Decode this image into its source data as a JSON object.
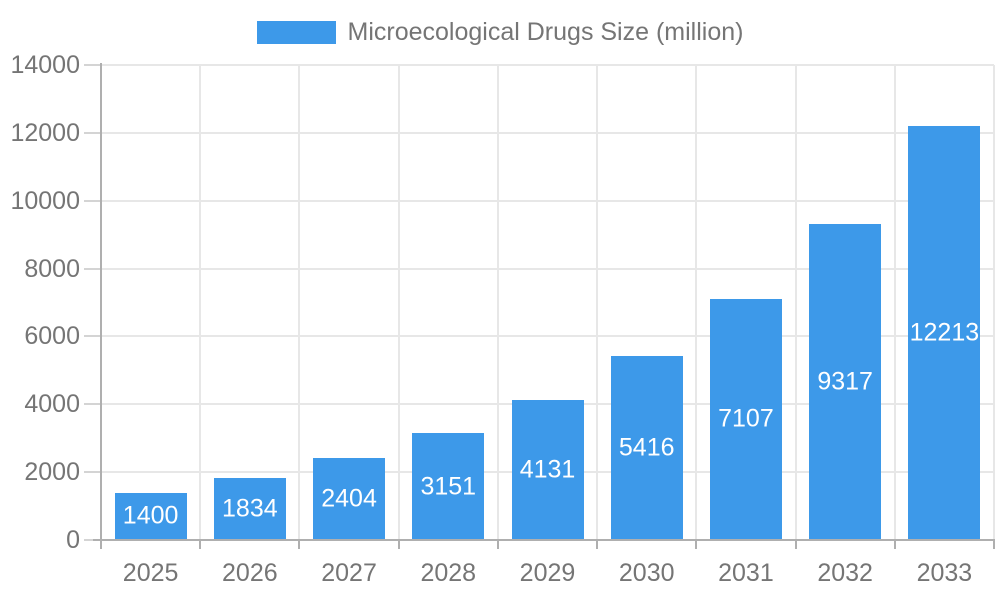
{
  "legend": {
    "label": "Microecological Drugs Size (million)"
  },
  "chart_data": {
    "type": "bar",
    "title": "",
    "xlabel": "",
    "ylabel": "",
    "categories": [
      "2025",
      "2026",
      "2027",
      "2028",
      "2029",
      "2030",
      "2031",
      "2032",
      "2033"
    ],
    "series": [
      {
        "name": "Microecological Drugs Size (million)",
        "values": [
          1400,
          1834,
          2404,
          3151,
          4131,
          5416,
          7107,
          9317,
          12213
        ]
      }
    ],
    "ylim": [
      0,
      14000
    ],
    "ytick_step": 2000,
    "grid": true,
    "legend_position": "top",
    "bar_labels_shown": true,
    "colors": {
      "bar": "#3D99E9",
      "bar_label": "#FFFFFF",
      "axis": "#AFAFAF",
      "gridline": "#E7E7E7",
      "y_tick": "#D4D4D4",
      "x_tick": "#AFAFAF",
      "text": "#757575"
    }
  }
}
